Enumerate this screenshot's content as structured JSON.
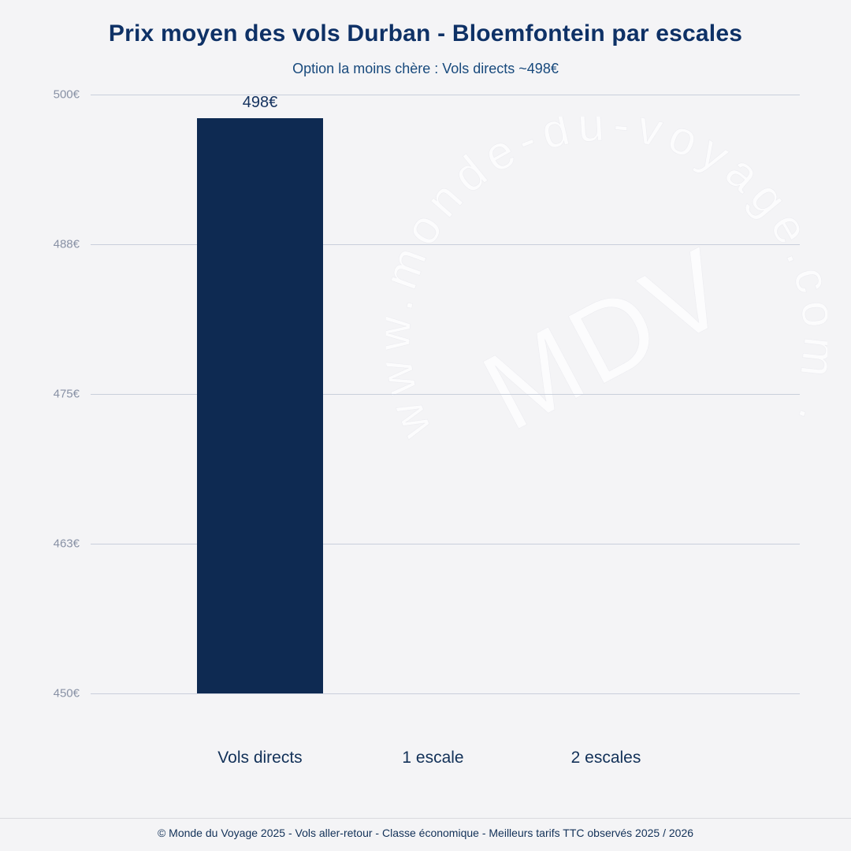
{
  "header": {
    "title": "Prix moyen des vols Durban - Bloemfontein par escales",
    "subtitle": "Option la moins chère : Vols directs ~498€"
  },
  "chart_data": {
    "type": "bar",
    "title": "Prix moyen des vols Durban - Bloemfontein par escales",
    "subtitle": "Option la moins chère : Vols directs ~498€",
    "categories": [
      "Vols directs",
      "1 escale",
      "2 escales"
    ],
    "values": [
      498,
      null,
      null
    ],
    "value_labels": [
      "498€",
      null,
      null
    ],
    "xlabel": "",
    "ylabel": "",
    "ylim": [
      450,
      500
    ],
    "yticks": [
      450,
      462.5,
      475,
      487.5,
      500
    ],
    "ytick_labels": [
      "450€",
      "463€",
      "475€",
      "488€",
      "500€"
    ],
    "grid": true,
    "legend": false,
    "bar_color": "#0e2a52"
  },
  "watermark": {
    "circle_text": "www.monde-du-voyage.com ·",
    "center_text": "MDV"
  },
  "footer": {
    "text": "© Monde du Voyage 2025 - Vols aller-retour - Classe économique - Meilleurs tarifs TTC observés 2025 / 2026"
  },
  "colors": {
    "background": "#f4f4f6",
    "title": "#0e3166",
    "subtitle": "#17497c",
    "bar": "#0e2a52",
    "tick_label": "#8891a5",
    "category_label": "#123158",
    "gridline": "#c9cfdb",
    "footer_text": "#123158"
  }
}
